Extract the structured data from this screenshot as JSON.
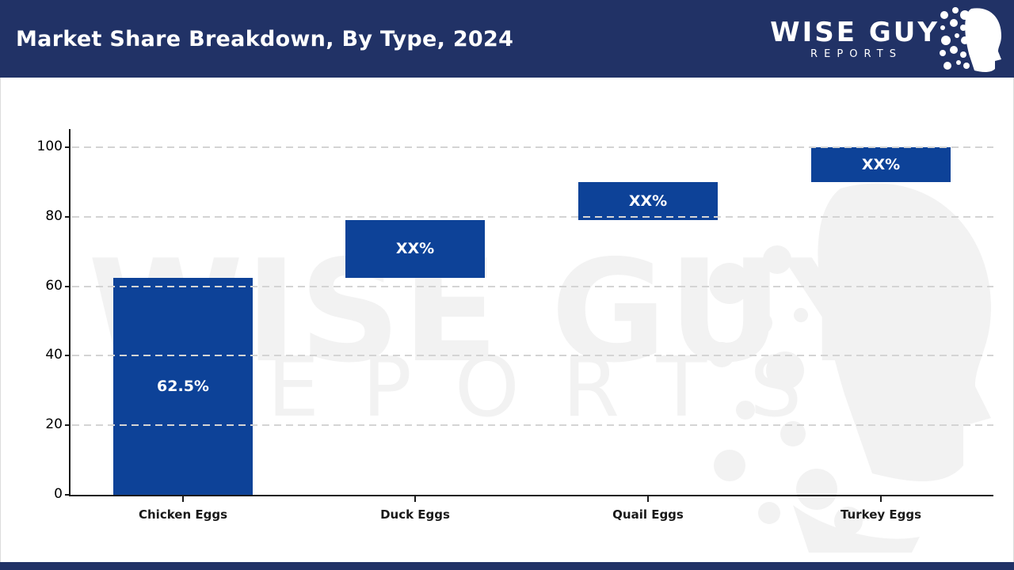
{
  "header": {
    "title": "Market Share Breakdown, By Type, 2024",
    "background": "#213266",
    "logo": {
      "line1": "WISE GUY",
      "line2": "REPORTS"
    }
  },
  "watermark": {
    "line1": "WISE GUY",
    "line2": "REPORTS"
  },
  "colors": {
    "header_bg": "#213266",
    "bar": "#0d4298",
    "bar_label": "#ffffff",
    "gridline": "#d4d4d4",
    "axis": "#1a1a1a"
  },
  "chart_data": {
    "type": "bar",
    "subtype": "waterfall",
    "title": "Market Share Breakdown, By Type, 2024",
    "categories": [
      "Chicken Eggs",
      "Duck Eggs",
      "Quail Eggs",
      "Turkey Eggs"
    ],
    "bars": [
      {
        "category": "Chicken Eggs",
        "start": 0,
        "end": 62.5,
        "label": "62.5%"
      },
      {
        "category": "Duck Eggs",
        "start": 62.5,
        "end": 79,
        "label": "XX%"
      },
      {
        "category": "Quail Eggs",
        "start": 79,
        "end": 90,
        "label": "XX%"
      },
      {
        "category": "Turkey Eggs",
        "start": 90,
        "end": 100,
        "label": "XX%"
      }
    ],
    "ylabel": "",
    "xlabel": "",
    "ylim": [
      0,
      100
    ],
    "yticks": [
      0,
      20,
      40,
      60,
      80,
      100
    ],
    "grid": "horizontal dashed, drawn above bars",
    "legend": "none"
  }
}
